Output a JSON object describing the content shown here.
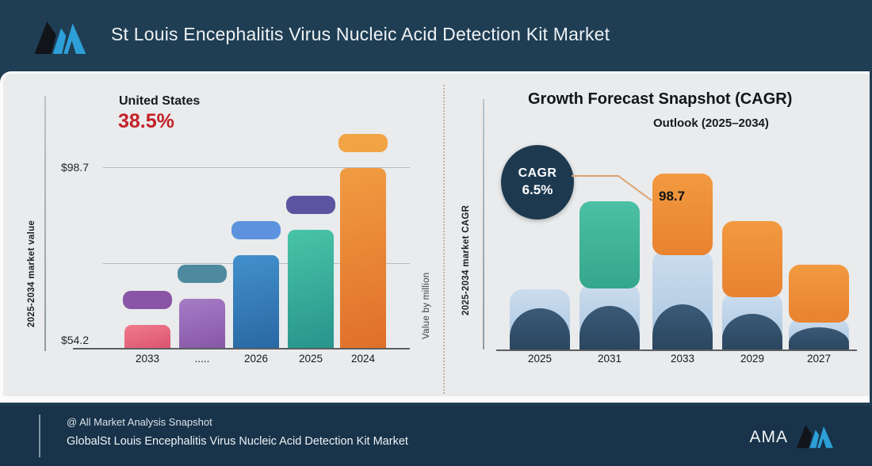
{
  "header": {
    "title": "St Louis Encephalitis Virus Nucleic Acid Detection Kit Market",
    "logo": "ama-mountain-logo"
  },
  "left_chart": {
    "region_label": "United States",
    "highlight_value": "38.5%",
    "y_axis_label": "2025-2034 market value",
    "right_axis_label": "Value by million",
    "tick_top": "$98.7",
    "tick_bottom": "$54.2"
  },
  "right_chart": {
    "title": "Growth Forecast Snapshot (CAGR)",
    "subtitle": "Outlook (2025–2034)",
    "y_axis_label": "2025-2034 market CAGR",
    "cagr_label": "CAGR",
    "cagr_value": "6.5%",
    "callout_value": "98.7"
  },
  "footer": {
    "line1": "@ All Market Analysis Snapshot",
    "line2": "GlobalSt Louis Encephalitis Virus Nucleic Acid Detection Kit Market",
    "brand": "AMA"
  },
  "colors": {
    "header_bg": "#1f3d53",
    "footer_bg": "#18334a",
    "card_bg": "#e9ebec",
    "accent_red": "#c32027",
    "badge_navy": "#1d3950",
    "connector_tan": "#d9a273",
    "left_bar_colors": [
      "#e26079",
      "#9468b8",
      "#3381bd",
      "#39b49c",
      "#ea8a36"
    ],
    "left_cap_colors": [
      "#8a55a6",
      "#4d8aa0",
      "#5d93de",
      "#5b54a1",
      "#f2a344"
    ],
    "right_dark": "#2e4c67",
    "right_light": "#b5cde5",
    "right_teal": "#3eb89b",
    "right_orange": "#ee9138",
    "logo_black": "#111418",
    "logo_blue": "#2d9fd8"
  },
  "chart_data": [
    {
      "type": "bar",
      "title": "United States",
      "annotation": "38.5%",
      "ylabel": "2025-2034 market value",
      "ylabel_right": "Value by million",
      "categories": [
        "2033",
        ".....",
        "2026",
        "2025",
        "2024"
      ],
      "values": [
        59.9,
        66.4,
        77.1,
        83.4,
        98.7
      ],
      "cap_markers": true,
      "y_ticks": [
        "$54.2",
        "$98.7"
      ],
      "ylim": [
        54.2,
        98.7
      ],
      "grid": true,
      "unit": "USD million (values estimated from bar heights; axis labeled $54.2–$98.7)"
    },
    {
      "type": "bar",
      "stacked": true,
      "title": "Growth Forecast Snapshot (CAGR)",
      "subtitle": "Outlook (2025–2034)",
      "ylabel": "2025-2034 market CAGR",
      "cagr_badge": {
        "label": "CAGR",
        "value": "6.5%"
      },
      "callout": {
        "category": "2033",
        "value": 98.7
      },
      "categories": [
        "2025",
        "2031",
        "2033",
        "2029",
        "2027"
      ],
      "bars": [
        {
          "label": "2025",
          "total": 33.8,
          "top_segment": 0,
          "base_segment": 23.1,
          "top_color": "none"
        },
        {
          "label": "2031",
          "total": 83.1,
          "top_segment": 46.2,
          "base_segment": 24.4,
          "top_color": "teal"
        },
        {
          "label": "2033",
          "total": 98.7,
          "top_segment": 43.1,
          "base_segment": 25.3,
          "top_color": "orange"
        },
        {
          "label": "2029",
          "total": 72.0,
          "top_segment": 40.0,
          "base_segment": 20.0,
          "top_color": "orange"
        },
        {
          "label": "2027",
          "total": 47.6,
          "top_segment": 29.8,
          "base_segment": 12.4,
          "top_color": "orange"
        }
      ],
      "grid": false,
      "unit": "relative (axis unlabeled; totals anchored so 2033 = 98.7)"
    }
  ]
}
